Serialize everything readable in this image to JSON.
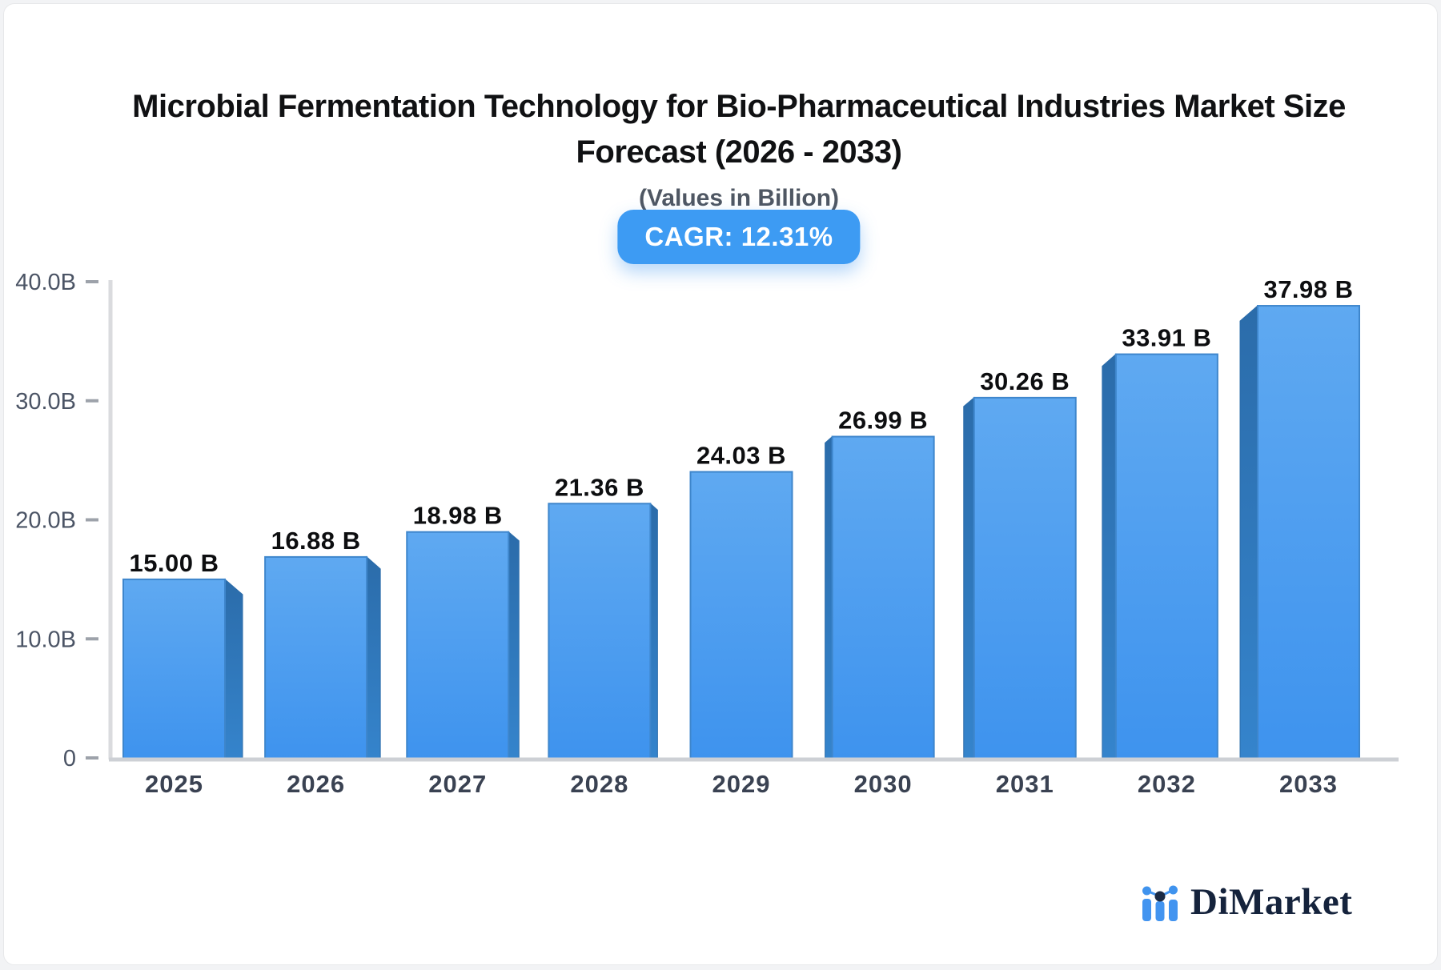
{
  "page": {
    "background": "#F2F3F5",
    "card_background": "#FFFFFF"
  },
  "header": {
    "title_line1": "Microbial Fermentation Technology for Bio-Pharmaceutical Industries Market Size",
    "title_line2": "Forecast (2026 - 2033)",
    "subtitle": "(Values in Billion)",
    "cagr_badge": "CAGR: 12.31%"
  },
  "chart_data": {
    "type": "bar",
    "title": "Microbial Fermentation Technology for Bio-Pharmaceutical Industries Market Size Forecast (2026 - 2033)",
    "subtitle": "(Values in Billion)",
    "cagr_percent": 12.31,
    "unit": "Billion",
    "categories": [
      "2025",
      "2026",
      "2027",
      "2028",
      "2029",
      "2030",
      "2031",
      "2032",
      "2033"
    ],
    "values": [
      15.0,
      16.88,
      18.98,
      21.36,
      24.03,
      26.99,
      30.26,
      33.91,
      37.98
    ],
    "value_labels": [
      "15.00 B",
      "16.88 B",
      "18.98 B",
      "21.36 B",
      "24.03 B",
      "26.99 B",
      "30.26 B",
      "33.91 B",
      "37.98 B"
    ],
    "ytick_values": [
      0,
      10,
      20,
      30,
      40
    ],
    "ytick_labels": [
      "0",
      "10.0B",
      "20.0B",
      "30.0B",
      "40.0B"
    ],
    "ylim": [
      0,
      40
    ],
    "grid": false,
    "legend": "none",
    "colors": {
      "bar_face_top": "#5FA9F1",
      "bar_face_bottom": "#3E93EE",
      "bar_edge": "#3E86CC",
      "bar_side_top": "#2B6CAA",
      "bar_side_bottom": "#3584CC",
      "axis_line": "#DADBDE",
      "baseline": "#CDD0D5",
      "tick_mark": "#9DA2AA",
      "y_label": "#4B5465",
      "x_label": "#3A4252",
      "value_label": "#0D0E10"
    }
  },
  "logo": {
    "text": "DiMarket",
    "navy": "#15233C",
    "blue": "#4294F0",
    "dot_dark": "#1C2B45"
  }
}
